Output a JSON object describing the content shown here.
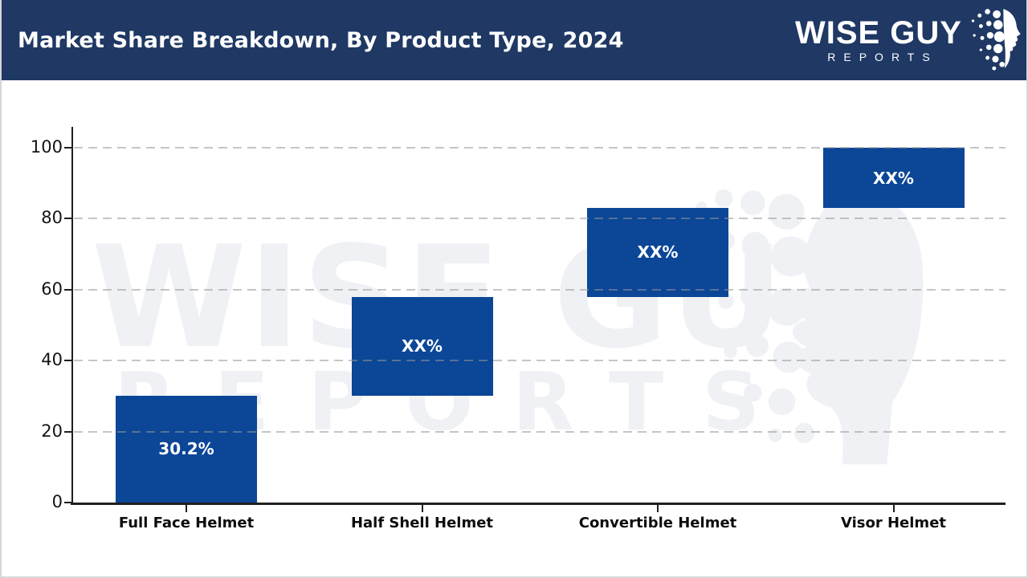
{
  "header": {
    "title": "Market Share Breakdown, By Product Type, 2024",
    "logo": {
      "line1": "WISE GUY",
      "line2": "REPORTS"
    }
  },
  "watermark": {
    "line1": "WISE GUY",
    "line2": "REPORTS"
  },
  "chart_data": {
    "type": "bar",
    "subtype": "floating-waterfall",
    "title": "Market Share Breakdown, By Product Type, 2024",
    "categories": [
      "Full Face Helmet",
      "Half Shell Helmet",
      "Convertible Helmet",
      "Visor Helmet"
    ],
    "series": [
      {
        "name": "Market Share",
        "segments": [
          {
            "start": 0,
            "end": 30.2,
            "label": "30.2%"
          },
          {
            "start": 30.2,
            "end": 58,
            "label": "XX%"
          },
          {
            "start": 58,
            "end": 83,
            "label": "XX%"
          },
          {
            "start": 83,
            "end": 100,
            "label": "XX%"
          }
        ]
      }
    ],
    "xlabel": "",
    "ylabel": "",
    "ylim": [
      0,
      100
    ],
    "yticks": [
      0,
      20,
      40,
      60,
      80,
      100
    ],
    "grid": "horizontal-dashed",
    "legend": "none"
  },
  "colors": {
    "header_bg": "#1f3864",
    "bar_fill": "#0b4697",
    "bar_label": "#ffffff",
    "gridline": "#c9c9c9",
    "axis": "#1f1f1f",
    "watermark": "#eff1f4",
    "page_border": "#d7d7d7"
  }
}
